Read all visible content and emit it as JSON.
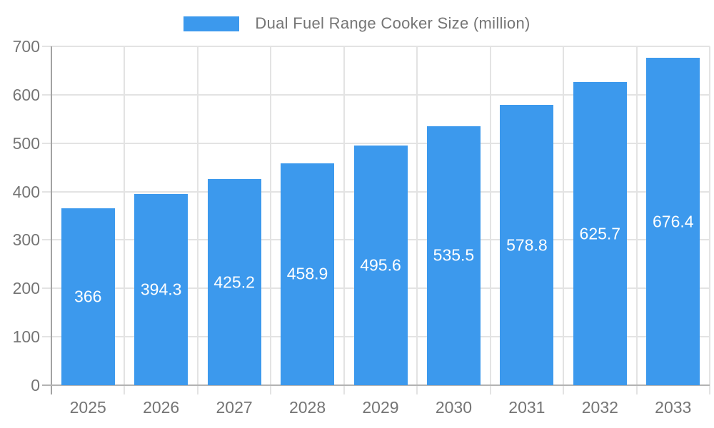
{
  "chart_data": {
    "type": "bar",
    "title": "",
    "legend": "Dual Fuel Range Cooker Size (million)",
    "legend_position": "top",
    "categories": [
      "2025",
      "2026",
      "2027",
      "2028",
      "2029",
      "2030",
      "2031",
      "2032",
      "2033"
    ],
    "values": [
      366,
      394.3,
      425.2,
      458.9,
      495.6,
      535.5,
      578.8,
      625.7,
      676.4
    ],
    "value_labels": [
      "366",
      "394.3",
      "425.2",
      "458.9",
      "495.6",
      "535.5",
      "578.8",
      "625.7",
      "676.4"
    ],
    "xlabel": "",
    "ylabel": "",
    "ylim": [
      0,
      700
    ],
    "yticks": [
      0,
      100,
      200,
      300,
      400,
      500,
      600,
      700
    ],
    "grid": true,
    "colors": {
      "bar": "#3c99ed",
      "grid": "#e3e3e3",
      "y_axis_line": "#a3a3a3",
      "baseline": "#b3b3b3",
      "axis_text": "#757575",
      "legend_text": "#757575",
      "value_text": "#ffffff",
      "background": "#ffffff"
    }
  }
}
